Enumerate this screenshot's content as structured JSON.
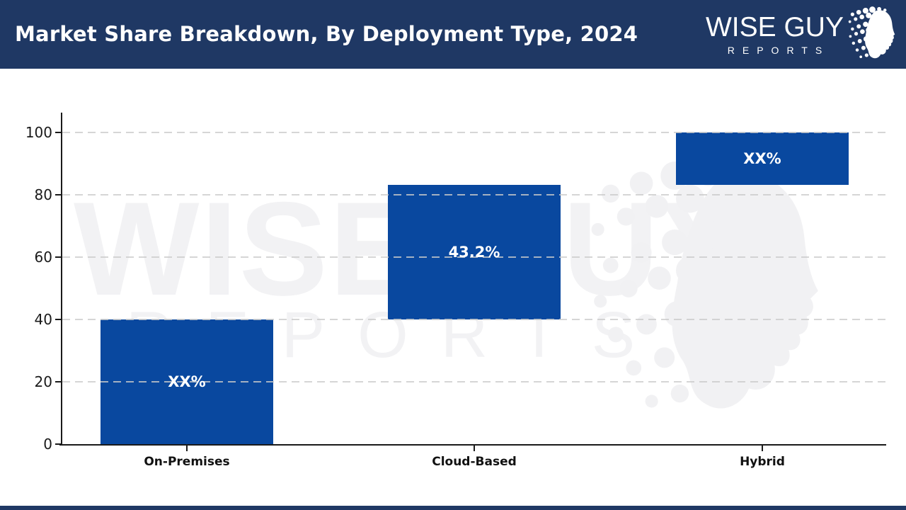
{
  "header": {
    "title": "Market Share Breakdown, By Deployment Type, 2024",
    "logo": {
      "line1": "WISE GUY",
      "line2": "REPORTS"
    }
  },
  "watermark": {
    "line1": "WISE GUY",
    "line2": "REPORTS"
  },
  "chart_data": {
    "type": "bar",
    "variant": "waterfall",
    "title": "Market Share Breakdown, By Deployment Type, 2024",
    "categories": [
      "On-Premises",
      "Cloud-Based",
      "Hybrid"
    ],
    "segments": [
      {
        "category": "On-Premises",
        "start": 0,
        "end": 40,
        "value_label": "XX%"
      },
      {
        "category": "Cloud-Based",
        "start": 40,
        "end": 83.2,
        "value_label": "43.2%"
      },
      {
        "category": "Hybrid",
        "start": 83.2,
        "end": 100,
        "value_label": "XX%"
      }
    ],
    "ylim": [
      0,
      100
    ],
    "yticks": [
      0,
      20,
      40,
      60,
      80,
      100
    ],
    "grid": {
      "horizontal": true,
      "style": "dashed"
    },
    "legend": "none"
  },
  "colors": {
    "header_bg": "#1F3864",
    "footer_bg": "#1F3864",
    "bar": "#09489F",
    "grid": "#d9d9d9",
    "axis": "#1a1a1a",
    "title_text": "#ffffff",
    "value_text": "#ffffff",
    "category_text": "#111111",
    "watermark": "#f2f2f4"
  }
}
